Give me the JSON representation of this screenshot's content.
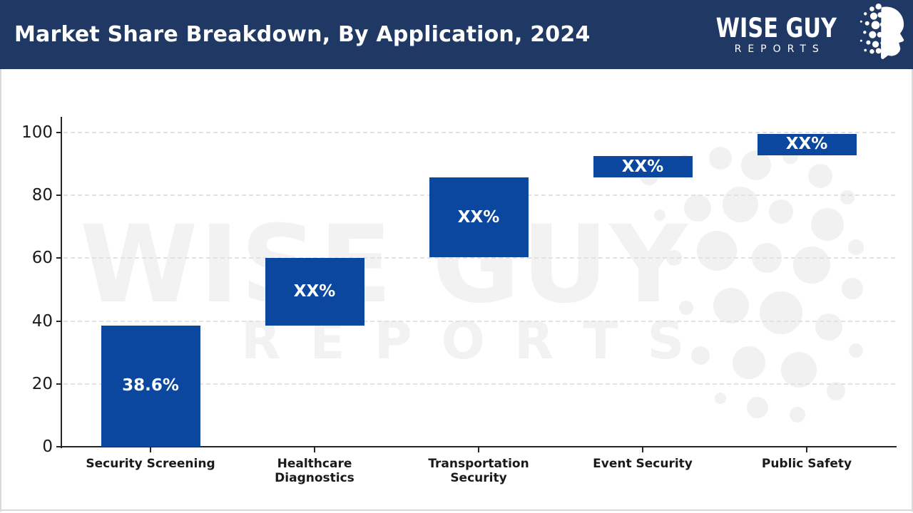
{
  "header": {
    "title": "Market Share Breakdown, By Application, 2024",
    "logo": {
      "name": "WISE GUY",
      "tagline": "REPORTS"
    }
  },
  "watermark": {
    "line1": "WISE GUY",
    "line2": "R E P O R T S"
  },
  "colors": {
    "header_bg": "#203864",
    "bar_fill": "#0b479e",
    "bar_label_text": "#ffffff",
    "grid_line": "#e2e2e2",
    "axis_line": "#262626",
    "tick_text": "#1a1a1a",
    "watermark": "#f2f2f2",
    "frame_edge": "#d9d9d9"
  },
  "chart_data": {
    "type": "bar",
    "subtype": "floating-waterfall",
    "title": "Market Share Breakdown, By Application, 2024",
    "categories": [
      "Security Screening",
      "Healthcare\nDiagnostics",
      "Transportation\nSecurity",
      "Event Security",
      "Public Safety"
    ],
    "segments": [
      {
        "category": "Security Screening",
        "start": 0,
        "end": 38.6,
        "label": "38.6%"
      },
      {
        "category": "Healthcare Diagnostics",
        "start": 38.6,
        "end": 60.0,
        "label": "XX%"
      },
      {
        "category": "Transportation Security",
        "start": 60.3,
        "end": 85.7,
        "label": "XX%"
      },
      {
        "category": "Event Security",
        "start": 85.7,
        "end": 92.5,
        "label": "XX%"
      },
      {
        "category": "Public Safety",
        "start": 92.7,
        "end": 99.6,
        "label": "XX%"
      }
    ],
    "yticks": [
      0,
      20,
      40,
      60,
      80,
      100
    ],
    "ylim": [
      0,
      105
    ],
    "xlabel": "",
    "ylabel": "",
    "grid": "horizontal-dashed",
    "legend": "none"
  }
}
